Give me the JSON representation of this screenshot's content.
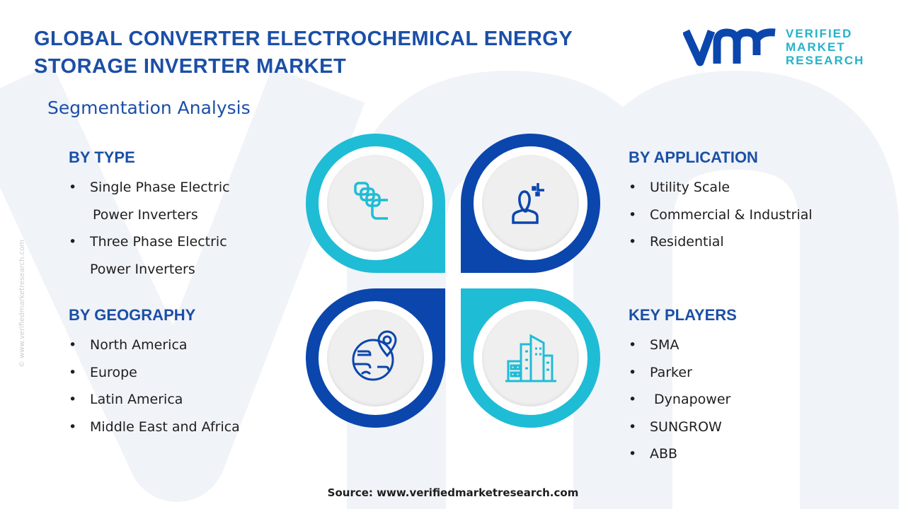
{
  "title": "GLOBAL CONVERTER ELECTROCHEMICAL ENERGY STORAGE INVERTER MARKET",
  "title_line1": "GLOBAL CONVERTER ELECTROCHEMICAL ENERGY",
  "title_line2": "STORAGE INVERTER MARKET",
  "subtitle": "Segmentation Analysis",
  "logo": {
    "mark": "vmr",
    "l1": "VERIFIED",
    "l2": "MARKET",
    "l3": "RESEARCH",
    "reg": "®"
  },
  "side_watermark": "© www.verifiedmarketresearch.com",
  "colors": {
    "navy": "#0b46ad",
    "cyan": "#1fbcd6",
    "heading": "#1b4fa6"
  },
  "segments": {
    "type": {
      "heading": "BY TYPE",
      "items": [
        "Single Phase Electric",
        "Power Inverters",
        "Three Phase Electric",
        "Power Inverters"
      ]
    },
    "application": {
      "heading": "BY APPLICATION",
      "items": [
        "Utility Scale",
        "Commercial & Industrial",
        "Residential"
      ]
    },
    "geography": {
      "heading": "BY GEOGRAPHY",
      "items": [
        "North America",
        "Europe",
        "Latin America",
        "Middle East and Africa"
      ]
    },
    "players": {
      "heading": "KEY PLAYERS",
      "items": [
        "SMA",
        "Parker",
        " Dynapower",
        "SUNGROW",
        "ABB"
      ]
    }
  },
  "icons": [
    "stacked-cards-icon",
    "person-icon",
    "globe-pin-icon",
    "buildings-icon"
  ],
  "source": "Source: www.verifiedmarketresearch.com"
}
